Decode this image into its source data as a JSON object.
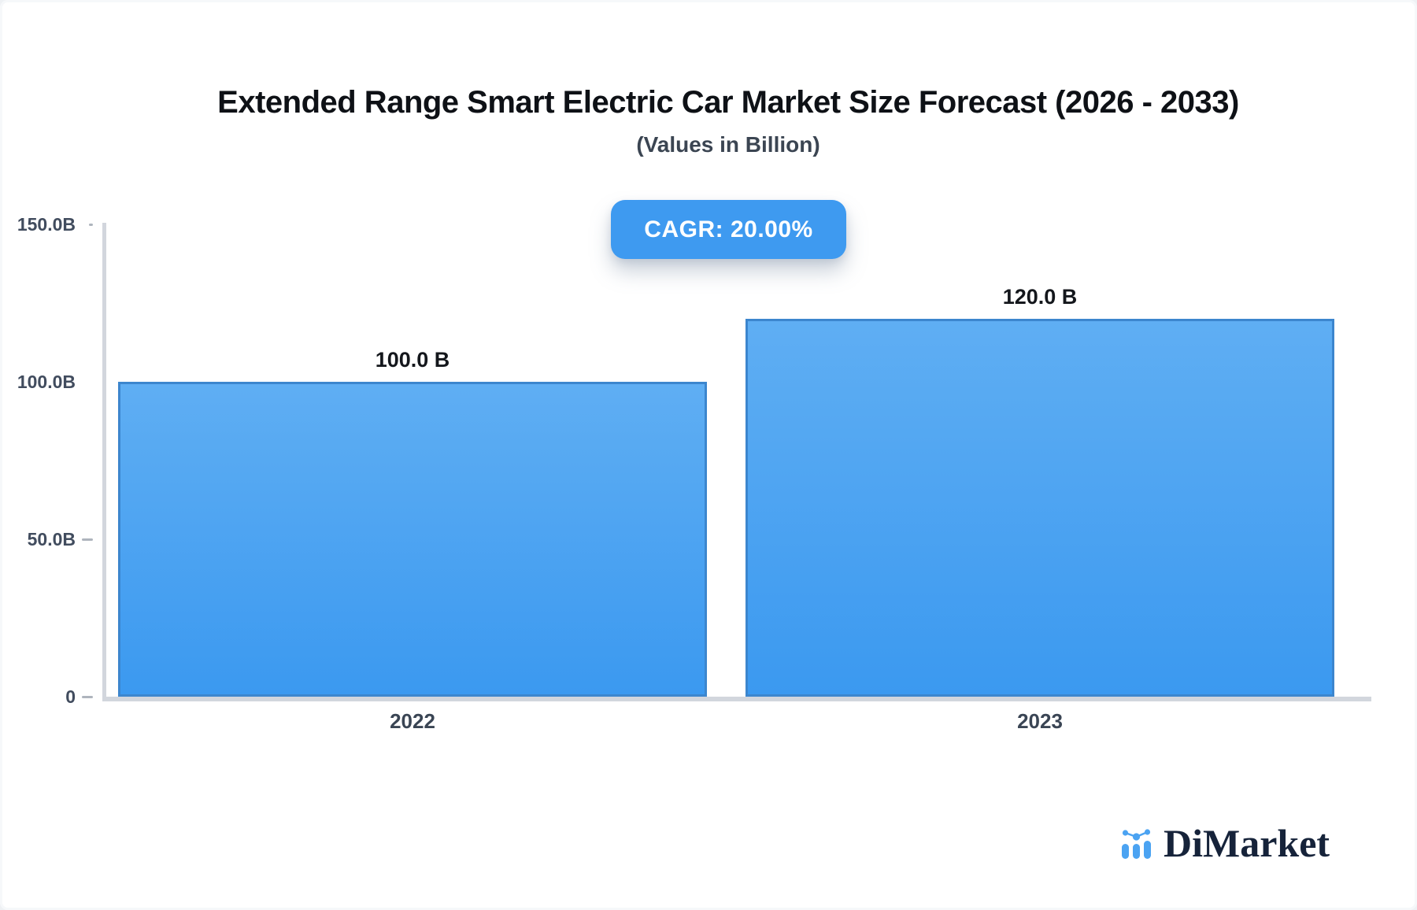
{
  "header": {
    "title": "Extended Range Smart Electric Car Market Size Forecast (2026 - 2033)",
    "subtitle": "(Values in Billion)",
    "cagr_label": "CAGR: 20.00%"
  },
  "chart_data": {
    "type": "bar",
    "title": "Extended Range Smart Electric Car Market Size Forecast (2026 - 2033)",
    "subtitle": "(Values in Billion)",
    "cagr_percent": "20.00%",
    "unit": "Billion",
    "categories": [
      "2022",
      "2023"
    ],
    "values": [
      100.0,
      120.0
    ],
    "bar_labels": [
      "100.0 B",
      "120.0 B"
    ],
    "ylim": [
      0,
      150
    ],
    "yticks": [
      {
        "value": 0,
        "label": "0",
        "mark": "dash"
      },
      {
        "value": 50,
        "label": "50.0B",
        "mark": "dash"
      },
      {
        "value": 100,
        "label": "100.0B",
        "mark": "none"
      },
      {
        "value": 150,
        "label": "150.0B",
        "mark": "dot"
      }
    ],
    "grid": false,
    "legend": false
  },
  "colors": {
    "bar_fill_top": "#5FAEF3",
    "bar_fill_bottom": "#3B99F0",
    "bar_border": "#3C86CE",
    "badge_bg": "#3E9AF0",
    "axis_line": "#D2D6DD",
    "tick_mark": "#AEB4BD",
    "logo_blue": "#4BA3F2",
    "logo_navy": "#16233A"
  },
  "branding": {
    "logo_text": "DiMarket"
  }
}
